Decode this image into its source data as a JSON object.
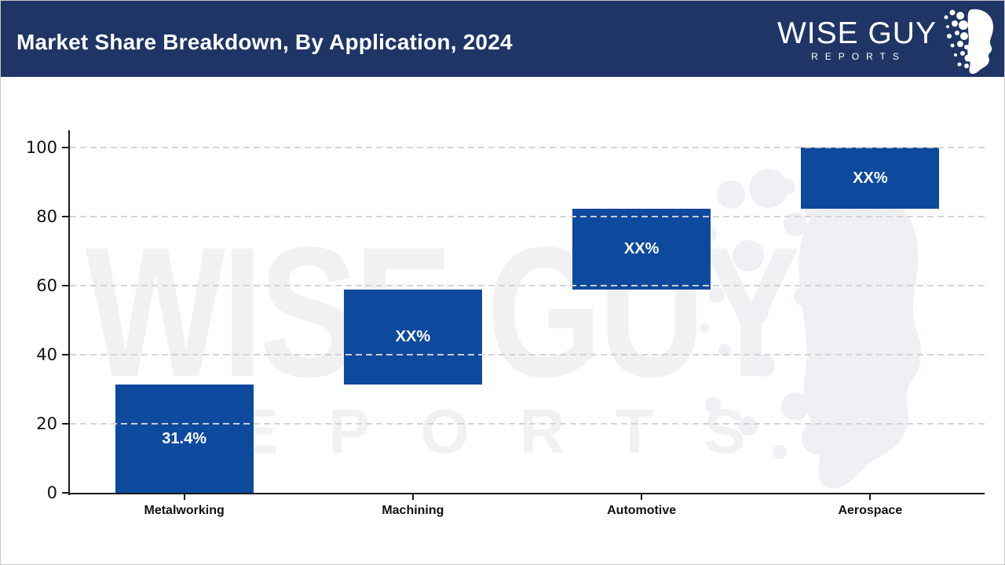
{
  "header": {
    "title": "Market Share Breakdown, By Application, 2024",
    "background_color": "#1e3565",
    "logo": {
      "line1": "WISE GUY",
      "line2": "REPORTS"
    }
  },
  "watermark": {
    "line1": "WISE GUY",
    "line2": "REPORTS"
  },
  "chart_data": {
    "type": "bar",
    "subtype": "waterfall",
    "title": "Market Share Breakdown, By Application, 2024",
    "categories": [
      "Metalworking",
      "Machining",
      "Automotive",
      "Aerospace"
    ],
    "segments": [
      {
        "category": "Metalworking",
        "start": 0,
        "end": 31.4,
        "label": "31.4%"
      },
      {
        "category": "Machining",
        "start": 31.4,
        "end": 58.9,
        "label": "XX%"
      },
      {
        "category": "Automotive",
        "start": 58.9,
        "end": 82.3,
        "label": "XX%"
      },
      {
        "category": "Aerospace",
        "start": 82.3,
        "end": 100,
        "label": "XX%"
      }
    ],
    "y_ticks": [
      0,
      20,
      40,
      60,
      80,
      100
    ],
    "ylim": [
      0,
      105
    ],
    "xlabel": "",
    "ylabel": "",
    "legend": "none",
    "grid": "horizontal-dashed",
    "bar_color": "#0d4a9e",
    "label_color": "#ffffff",
    "axis_color": "#1a1a1a",
    "gridline_color": "#d3d3d3"
  }
}
